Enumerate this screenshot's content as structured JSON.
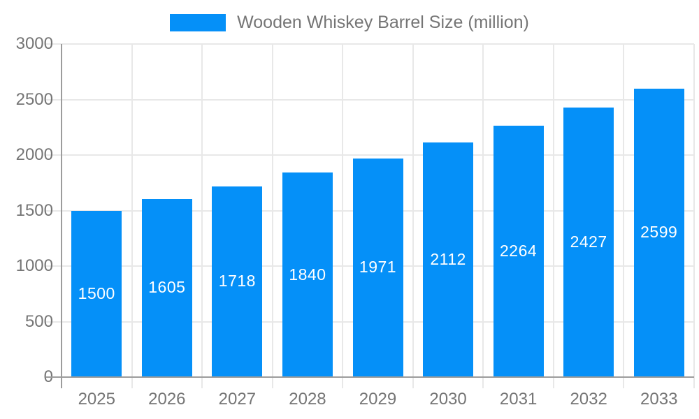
{
  "chart_data": {
    "type": "bar",
    "legend": "Wooden Whiskey Barrel Size (million)",
    "categories": [
      "2025",
      "2026",
      "2027",
      "2028",
      "2029",
      "2030",
      "2031",
      "2032",
      "2033"
    ],
    "values": [
      1500,
      1605,
      1718,
      1840,
      1971,
      2112,
      2264,
      2427,
      2599
    ],
    "ylim": [
      0,
      3000
    ],
    "y_ticks": [
      0,
      500,
      1000,
      1500,
      2000,
      2500,
      3000
    ],
    "grid": true,
    "legend_position": "top-center",
    "bar_color": "#0590f8",
    "grid_color": "#e8e8e8",
    "axis_color": "#9c9c9c",
    "tick_label_color": "#757575",
    "value_label_color": "#ffffff"
  }
}
